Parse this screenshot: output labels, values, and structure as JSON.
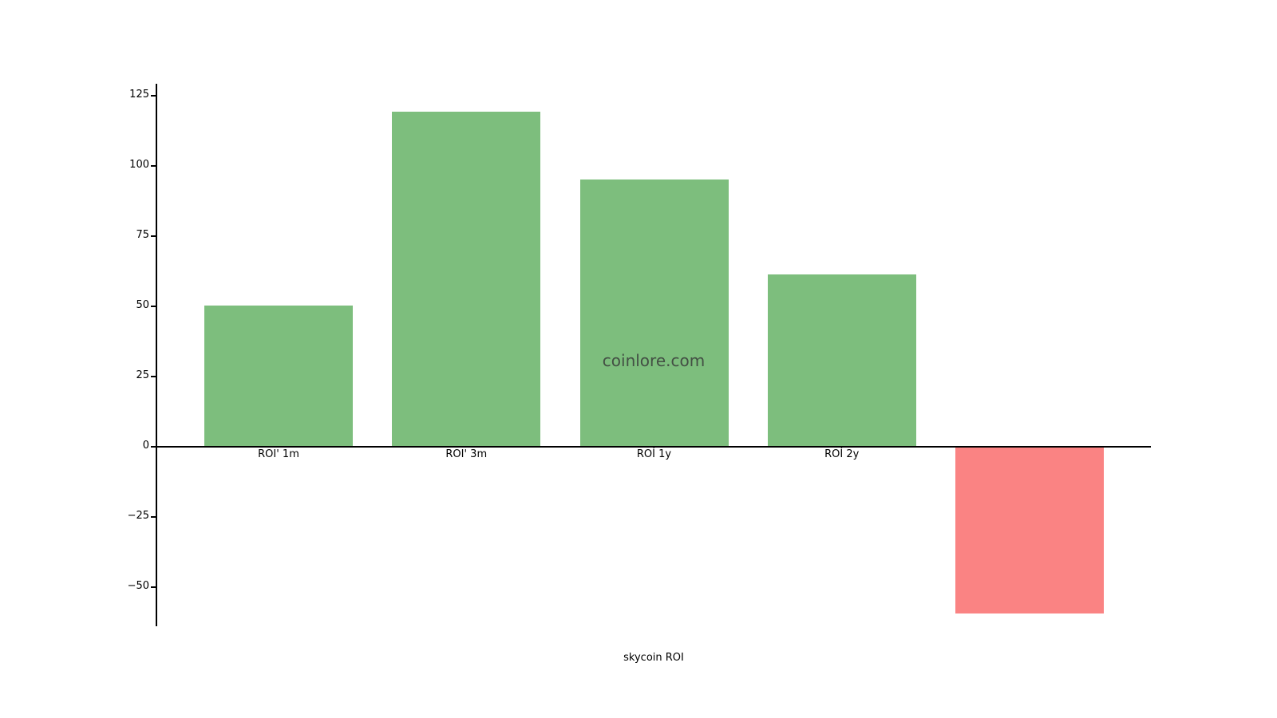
{
  "page": {
    "background": "#ffffff"
  },
  "chart_data": {
    "type": "bar",
    "categories": [
      "ROI' 1m",
      "ROI' 3m",
      "ROÍ 1y",
      "ROÍ 2y",
      ""
    ],
    "values": [
      50,
      119,
      95,
      61,
      -59
    ],
    "bar_colors": [
      "#7dbe7d",
      "#7dbe7d",
      "#7dbe7d",
      "#7dbe7d",
      "#fa8383"
    ],
    "positive_color": "#7dbe7d",
    "negative_color": "#fa8383",
    "title": "",
    "xlabel": "skycoin ROI",
    "ylabel": "",
    "yticks": [
      125,
      100,
      75,
      50,
      25,
      0,
      -25,
      -50
    ],
    "ylim": [
      -65,
      129
    ],
    "grid": false,
    "legend_position": "none",
    "watermark": "coinlore.com",
    "axis_color": "#000000",
    "text_color": "#000000",
    "watermark_color": "#3f4640"
  }
}
